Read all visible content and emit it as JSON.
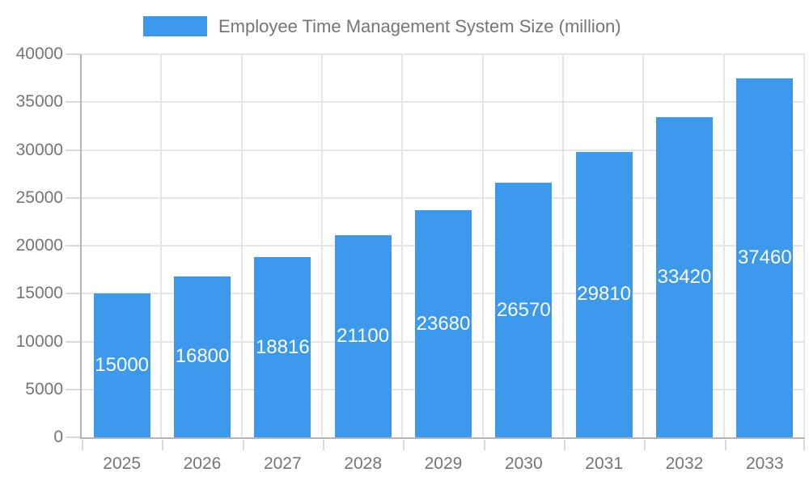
{
  "chart_data": {
    "type": "bar",
    "title": "Employee Time Management System Size (million)",
    "categories": [
      "2025",
      "2026",
      "2027",
      "2028",
      "2029",
      "2030",
      "2031",
      "2032",
      "2033"
    ],
    "values": [
      15000,
      16800,
      18816,
      21100,
      23680,
      26570,
      29810,
      33420,
      37460
    ],
    "data_labels": [
      "15000",
      "16800",
      "18816",
      "21100",
      "23680",
      "26570",
      "29810",
      "33420",
      "37460"
    ],
    "xlabel": "",
    "ylabel": "",
    "ylim": [
      0,
      40000
    ],
    "ytick_step": 5000,
    "ytick_labels": [
      "0",
      "5000",
      "10000",
      "15000",
      "20000",
      "25000",
      "30000",
      "35000",
      "40000"
    ],
    "grid": true,
    "legend_position": "top",
    "legend_swatch": "blue-square",
    "colors": {
      "bar": "#3C99EC",
      "grid": "#E6E6E6",
      "tick": "#D9D9D9",
      "axis": "#B3B3B3",
      "text": "#757575",
      "data_label": "#FFFFFF",
      "background": "#FFFFFF"
    }
  }
}
